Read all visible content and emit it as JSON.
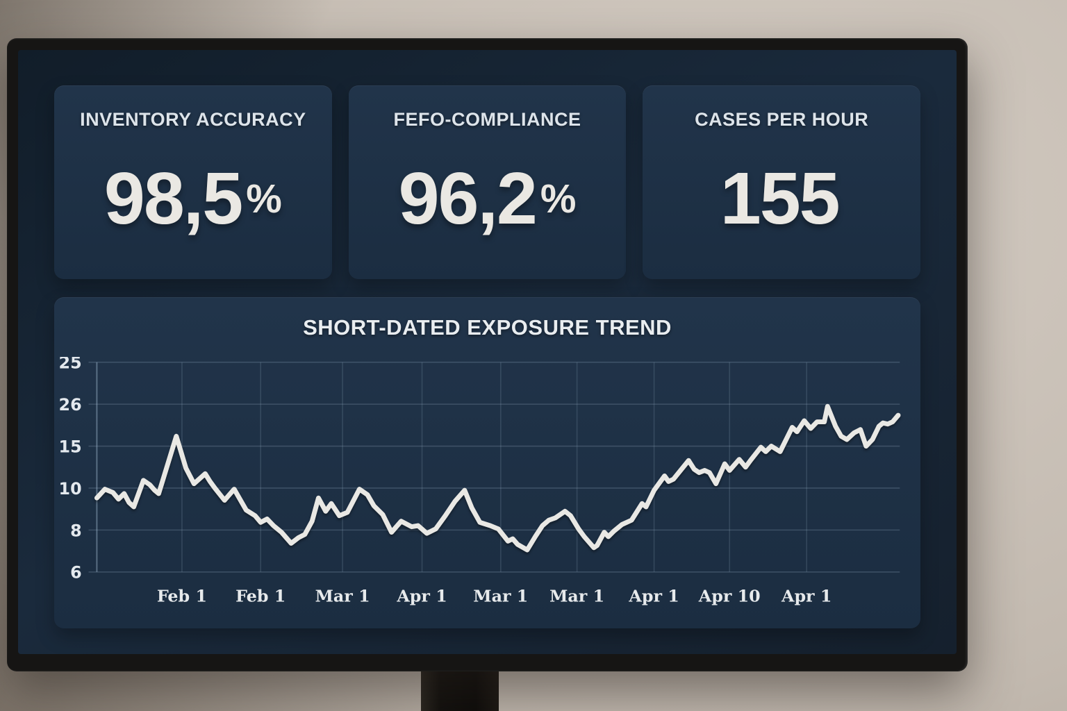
{
  "kpi_cards": [
    {
      "label": "INVENTORY ACCURACY",
      "value": "98,5",
      "unit": "%"
    },
    {
      "label": "FEFO-COMPLIANCE",
      "value": "96,2",
      "unit": "%"
    },
    {
      "label": "CASES PER HOUR",
      "value": "155",
      "unit": ""
    }
  ],
  "chart_data": {
    "type": "line",
    "title": "SHORT-DATED EXPOSURE TREND",
    "legend": "none",
    "grid": true,
    "y_tick_labels": [
      "25",
      "26",
      "15",
      "10",
      "8",
      "6"
    ],
    "y_scale": {
      "top_value": 25,
      "bottom_value": 6
    },
    "x_tick_labels": [
      "Feb 1",
      "Feb 1",
      "Mar 1",
      "Apr 1",
      "Mar 1",
      "Mar 1",
      "Apr 1",
      "Apr 10",
      "Apr 1"
    ],
    "x_tick_pos": [
      10.6,
      20.4,
      30.6,
      40.5,
      50.3,
      59.8,
      69.4,
      78.8,
      88.4
    ],
    "line_color": "#e9e8e4",
    "points": [
      [
        0,
        12.7
      ],
      [
        1,
        13.5
      ],
      [
        2,
        13.2
      ],
      [
        2.7,
        12.6
      ],
      [
        3.4,
        13.1
      ],
      [
        4,
        12.3
      ],
      [
        4.6,
        11.9
      ],
      [
        5.8,
        14.3
      ],
      [
        6.6,
        13.9
      ],
      [
        7.2,
        13.4
      ],
      [
        7.7,
        13.1
      ],
      [
        9.9,
        18.3
      ],
      [
        11.1,
        15.4
      ],
      [
        12.1,
        14
      ],
      [
        13.5,
        14.9
      ],
      [
        14.1,
        14.2
      ],
      [
        14.7,
        13.6
      ],
      [
        15.9,
        12.5
      ],
      [
        17.1,
        13.5
      ],
      [
        18.6,
        11.6
      ],
      [
        19.7,
        11.1
      ],
      [
        20.4,
        10.5
      ],
      [
        21.2,
        10.8
      ],
      [
        22,
        10.2
      ],
      [
        23,
        9.6
      ],
      [
        24.2,
        8.6
      ],
      [
        25.1,
        9.1
      ],
      [
        25.9,
        9.4
      ],
      [
        26.8,
        10.6
      ],
      [
        27.6,
        12.7
      ],
      [
        28.5,
        11.5
      ],
      [
        29.2,
        12.2
      ],
      [
        30.2,
        11.1
      ],
      [
        31.2,
        11.4
      ],
      [
        32.7,
        13.5
      ],
      [
        33.7,
        13
      ],
      [
        34.5,
        12
      ],
      [
        35.6,
        11.2
      ],
      [
        36.7,
        9.6
      ],
      [
        37.9,
        10.6
      ],
      [
        39.2,
        10.1
      ],
      [
        40,
        10.2
      ],
      [
        41.1,
        9.5
      ],
      [
        42.2,
        9.9
      ],
      [
        43.4,
        11.1
      ],
      [
        44.6,
        12.4
      ],
      [
        45.8,
        13.4
      ],
      [
        46.7,
        11.8
      ],
      [
        47.7,
        10.5
      ],
      [
        49,
        10.2
      ],
      [
        50,
        9.9
      ],
      [
        51.2,
        8.8
      ],
      [
        51.8,
        9
      ],
      [
        52.4,
        8.5
      ],
      [
        53.6,
        8
      ],
      [
        54.6,
        9.2
      ],
      [
        55.5,
        10.2
      ],
      [
        56.3,
        10.7
      ],
      [
        57.1,
        10.9
      ],
      [
        58.3,
        11.5
      ],
      [
        59,
        11.1
      ],
      [
        60,
        9.9
      ],
      [
        60.7,
        9.2
      ],
      [
        61.9,
        8.2
      ],
      [
        62.3,
        8.4
      ],
      [
        63.2,
        9.6
      ],
      [
        63.7,
        9.2
      ],
      [
        64.4,
        9.7
      ],
      [
        65.4,
        10.3
      ],
      [
        66.6,
        10.7
      ],
      [
        67.9,
        12.2
      ],
      [
        68.4,
        11.9
      ],
      [
        69.4,
        13.4
      ],
      [
        70.7,
        14.7
      ],
      [
        71.2,
        14.2
      ],
      [
        71.8,
        14.4
      ],
      [
        73.7,
        16.1
      ],
      [
        74.4,
        15.3
      ],
      [
        75,
        15
      ],
      [
        75.7,
        15.2
      ],
      [
        76.3,
        15
      ],
      [
        77.1,
        14
      ],
      [
        78.2,
        15.8
      ],
      [
        78.8,
        15.2
      ],
      [
        80,
        16.2
      ],
      [
        80.8,
        15.5
      ],
      [
        81.4,
        16.1
      ],
      [
        82.7,
        17.3
      ],
      [
        83.3,
        16.9
      ],
      [
        84,
        17.4
      ],
      [
        85.1,
        16.9
      ],
      [
        86.6,
        19.1
      ],
      [
        87.2,
        18.7
      ],
      [
        88.1,
        19.7
      ],
      [
        88.9,
        19
      ],
      [
        89.7,
        19.6
      ],
      [
        90.6,
        19.6
      ],
      [
        91,
        21
      ],
      [
        92,
        19.2
      ],
      [
        92.7,
        18.3
      ],
      [
        93.4,
        18
      ],
      [
        94.3,
        18.6
      ],
      [
        95.1,
        18.9
      ],
      [
        95.8,
        17.4
      ],
      [
        96.6,
        18
      ],
      [
        97.4,
        19.2
      ],
      [
        97.9,
        19.5
      ],
      [
        98.5,
        19.4
      ],
      [
        99.1,
        19.6
      ],
      [
        99.8,
        20.2
      ]
    ]
  },
  "colors": {
    "screen_bg": "#15222f",
    "card_bg": "#1e3145",
    "text": "#e9e8e4",
    "grid": "#96adc4",
    "bezel": "#161514",
    "wall": "#c2b9af"
  }
}
